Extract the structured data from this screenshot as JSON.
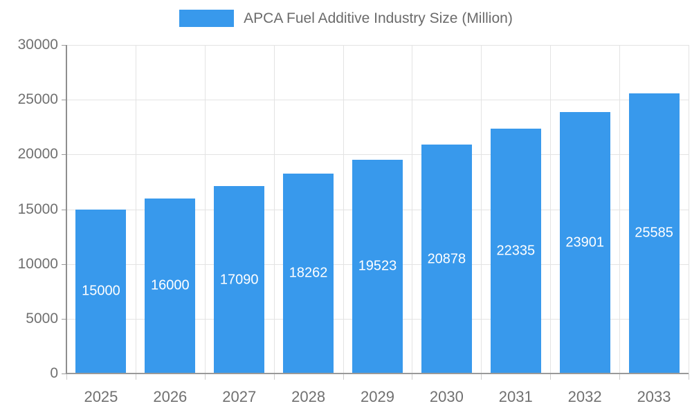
{
  "legend": {
    "label": "APCA Fuel Additive Industry Size (Million)"
  },
  "chart_data": {
    "type": "bar",
    "title": "APCA Fuel Additive Industry Size (Million)",
    "categories": [
      "2025",
      "2026",
      "2027",
      "2028",
      "2029",
      "2030",
      "2031",
      "2032",
      "2033"
    ],
    "values": [
      15000,
      16000,
      17090,
      18262,
      19523,
      20878,
      22335,
      23901,
      25585
    ],
    "xlabel": "",
    "ylabel": "",
    "ylim": [
      0,
      30000
    ],
    "yticks": [
      0,
      5000,
      10000,
      15000,
      20000,
      25000,
      30000
    ],
    "grid": true,
    "legend_position": "top-center",
    "value_labels": "inside-center",
    "colors": {
      "bar": "#3899ec",
      "value_label": "#ffffff",
      "axis_label": "#707070",
      "legend_text": "#6b6b6b",
      "gridline": "#e3e3e3",
      "axis_line": "#999999"
    }
  }
}
